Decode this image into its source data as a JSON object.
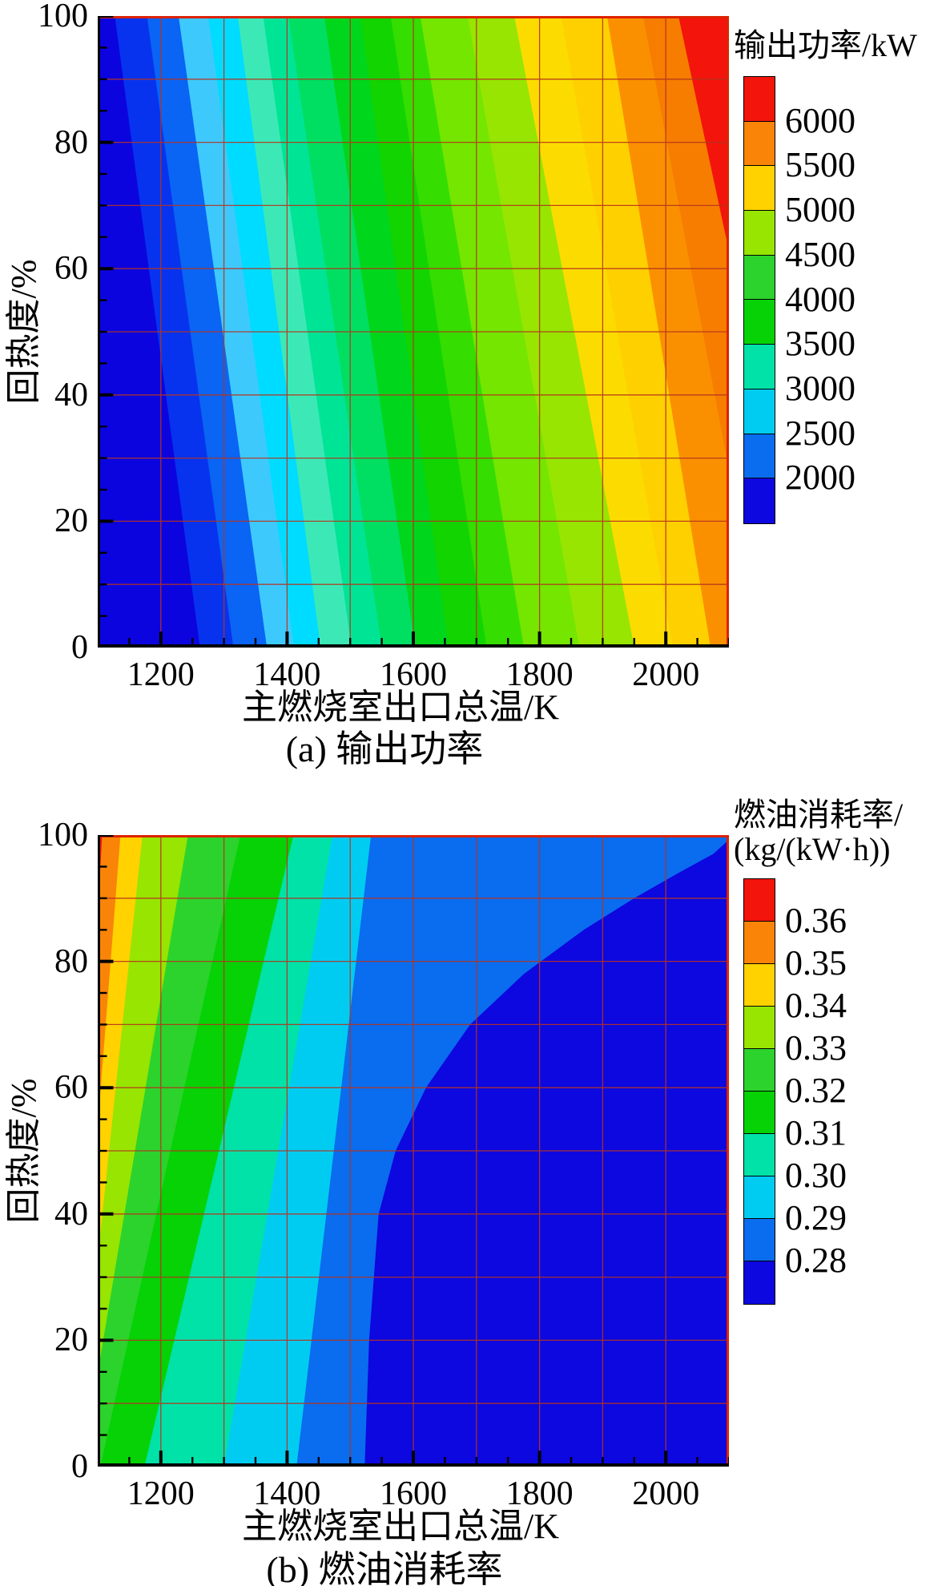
{
  "figure": {
    "background": "#ffffff",
    "frame_color": "#dd2200",
    "grid_color": "#b5341f",
    "axis_color": "#000000"
  },
  "chart_data": [
    {
      "id": "a",
      "type": "filled-contour",
      "caption": "(a) 输出功率",
      "xlabel": "主燃烧室出口总温/K",
      "ylabel": "回热度/%",
      "x_range": [
        1100,
        2100
      ],
      "y_range": [
        0,
        100
      ],
      "x_tick_labels": [
        "1200",
        "1400",
        "1600",
        "1800",
        "2000"
      ],
      "x_tick_values": [
        1200,
        1400,
        1600,
        1800,
        2000
      ],
      "y_tick_labels": [
        "0",
        "20",
        "40",
        "60",
        "80",
        "100"
      ],
      "y_tick_values": [
        0,
        20,
        40,
        60,
        80,
        100
      ],
      "x_minor_step": 50,
      "y_minor_step": 5,
      "grid_x_step": 100,
      "grid_y_step": 10,
      "legend": {
        "title": "输出功率/kW",
        "title_line2": "",
        "labels": [
          "6000",
          "5500",
          "5000",
          "4500",
          "4000",
          "3500",
          "3000",
          "2500",
          "2000"
        ],
        "swatch_colors_top_to_bottom": [
          "#f3140c",
          "#f98408",
          "#ffd200",
          "#97e501",
          "#2cd32c",
          "#06d206",
          "#00e2a8",
          "#00ccf2",
          "#0a6cee",
          "#0d07e0"
        ]
      },
      "background_band_color": "#0c04df",
      "boundaries": [
        {
          "level": 2000,
          "color_right": "#0733ee",
          "points_sigma_T": [
            [
              100,
              1127
            ],
            [
              0,
              1262
            ]
          ]
        },
        {
          "level": 2250,
          "color_right": "#0a64f4",
          "points_sigma_T": [
            [
              100,
              1178
            ],
            [
              0,
              1315
            ]
          ]
        },
        {
          "level": 2500,
          "color_right": "#3ec9fc",
          "points_sigma_T": [
            [
              100,
              1228
            ],
            [
              0,
              1368
            ]
          ]
        },
        {
          "level": 2750,
          "color_right": "#00dcff",
          "points_sigma_T": [
            [
              100,
              1275
            ],
            [
              0,
              1411
            ]
          ]
        },
        {
          "level": 3000,
          "color_right": "#3ce9b6",
          "points_sigma_T": [
            [
              100,
              1322
            ],
            [
              0,
              1453
            ]
          ]
        },
        {
          "level": 3250,
          "color_right": "#00e496",
          "points_sigma_T": [
            [
              100,
              1362
            ],
            [
              0,
              1502
            ]
          ]
        },
        {
          "level": 3500,
          "color_right": "#00df62",
          "points_sigma_T": [
            [
              100,
              1402
            ],
            [
              0,
              1550
            ]
          ]
        },
        {
          "level": 3750,
          "color_right": "#00d61c",
          "points_sigma_T": [
            [
              100,
              1459
            ],
            [
              0,
              1603
            ]
          ]
        },
        {
          "level": 4000,
          "color_right": "#12d400",
          "points_sigma_T": [
            [
              100,
              1516
            ],
            [
              0,
              1656
            ]
          ]
        },
        {
          "level": 4250,
          "color_right": "#35dd00",
          "points_sigma_T": [
            [
              100,
              1564
            ],
            [
              0,
              1716
            ]
          ]
        },
        {
          "level": 4500,
          "color_right": "#74e600",
          "points_sigma_T": [
            [
              100,
              1611
            ],
            [
              0,
              1775
            ]
          ]
        },
        {
          "level": 4750,
          "color_right": "#97e500",
          "points_sigma_T": [
            [
              100,
              1686
            ],
            [
              0,
              1863
            ]
          ]
        },
        {
          "level": 5000,
          "color_right": "#fcdc00",
          "points_sigma_T": [
            [
              100,
              1760
            ],
            [
              0,
              1950
            ]
          ]
        },
        {
          "level": 5250,
          "color_right": "#ffd000",
          "points_sigma_T": [
            [
              100,
              1834
            ],
            [
              0,
              2011
            ]
          ]
        },
        {
          "level": 5500,
          "color_right": "#fa9000",
          "points_sigma_T": [
            [
              100,
              1907
            ],
            [
              0,
              2071
            ]
          ]
        },
        {
          "level": 5750,
          "color_right": "#f67d00",
          "points_sigma_T": [
            [
              100,
              1964
            ],
            [
              0,
              2153
            ]
          ]
        },
        {
          "level": 6000,
          "color_right": "#f3140c",
          "points_sigma_T": [
            [
              100,
              2020
            ],
            [
              0,
              2235
            ]
          ]
        }
      ]
    },
    {
      "id": "b",
      "type": "filled-contour",
      "caption": "(b) 燃油消耗率",
      "xlabel": "主燃烧室出口总温/K",
      "ylabel": "回热度/%",
      "x_range": [
        1100,
        2100
      ],
      "y_range": [
        0,
        100
      ],
      "x_tick_labels": [
        "1200",
        "1400",
        "1600",
        "1800",
        "2000"
      ],
      "x_tick_values": [
        1200,
        1400,
        1600,
        1800,
        2000
      ],
      "y_tick_labels": [
        "0",
        "20",
        "40",
        "60",
        "80",
        "100"
      ],
      "y_tick_values": [
        0,
        20,
        40,
        60,
        80,
        100
      ],
      "x_minor_step": 50,
      "y_minor_step": 5,
      "grid_x_step": 100,
      "grid_y_step": 10,
      "legend": {
        "title": "燃油消耗率/",
        "title_line2": "(kg/(kW·h))",
        "labels": [
          "0.36",
          "0.35",
          "0.34",
          "0.33",
          "0.32",
          "0.31",
          "0.30",
          "0.29",
          "0.28"
        ],
        "swatch_colors_top_to_bottom": [
          "#f3140c",
          "#f98408",
          "#ffd200",
          "#97e501",
          "#2cd32c",
          "#06d206",
          "#00e2a8",
          "#00ccf2",
          "#0a6cee",
          "#0d07e0"
        ]
      },
      "background_band_color": "#f3140c",
      "boundaries": [
        {
          "level": 0.36,
          "color_right": "#f98408",
          "points_sigma_T": [
            [
              100,
              1107
            ],
            [
              0,
              1052
            ]
          ]
        },
        {
          "level": 0.35,
          "color_right": "#ffd200",
          "points_sigma_T": [
            [
              100,
              1136
            ],
            [
              0,
              1058
            ]
          ]
        },
        {
          "level": 0.34,
          "color_right": "#97e501",
          "points_sigma_T": [
            [
              100,
              1171
            ],
            [
              0,
              1065
            ]
          ]
        },
        {
          "level": 0.33,
          "color_right": "#2cd32c",
          "points_sigma_T": [
            [
              100,
              1243
            ],
            [
              0,
              1075
            ]
          ]
        },
        {
          "level": 0.32,
          "color_right": "#06d206",
          "points_sigma_T": [
            [
              100,
              1326
            ],
            [
              0,
              1104
            ]
          ]
        },
        {
          "level": 0.31,
          "color_right": "#00e2a8",
          "points_sigma_T": [
            [
              100,
              1410
            ],
            [
              0,
              1174
            ]
          ]
        },
        {
          "level": 0.3,
          "color_right": "#00ccf2",
          "points_sigma_T": [
            [
              100,
              1472
            ],
            [
              0,
              1300
            ]
          ]
        },
        {
          "level": 0.29,
          "color_right": "#0a6cee",
          "points_sigma_T": [
            [
              100,
              1533
            ],
            [
              0,
              1415
            ]
          ]
        },
        {
          "level": 0.28,
          "color_right": "#0d07e0",
          "points_sigma_T": [
            [
              100,
              2108
            ],
            [
              97,
              2075
            ],
            [
              94,
              2020
            ],
            [
              90,
              1950
            ],
            [
              85,
              1870
            ],
            [
              78,
              1775
            ],
            [
              70,
              1690
            ],
            [
              60,
              1620
            ],
            [
              50,
              1572
            ],
            [
              40,
              1545
            ],
            [
              20,
              1530
            ],
            [
              0,
              1523
            ]
          ]
        }
      ]
    }
  ]
}
